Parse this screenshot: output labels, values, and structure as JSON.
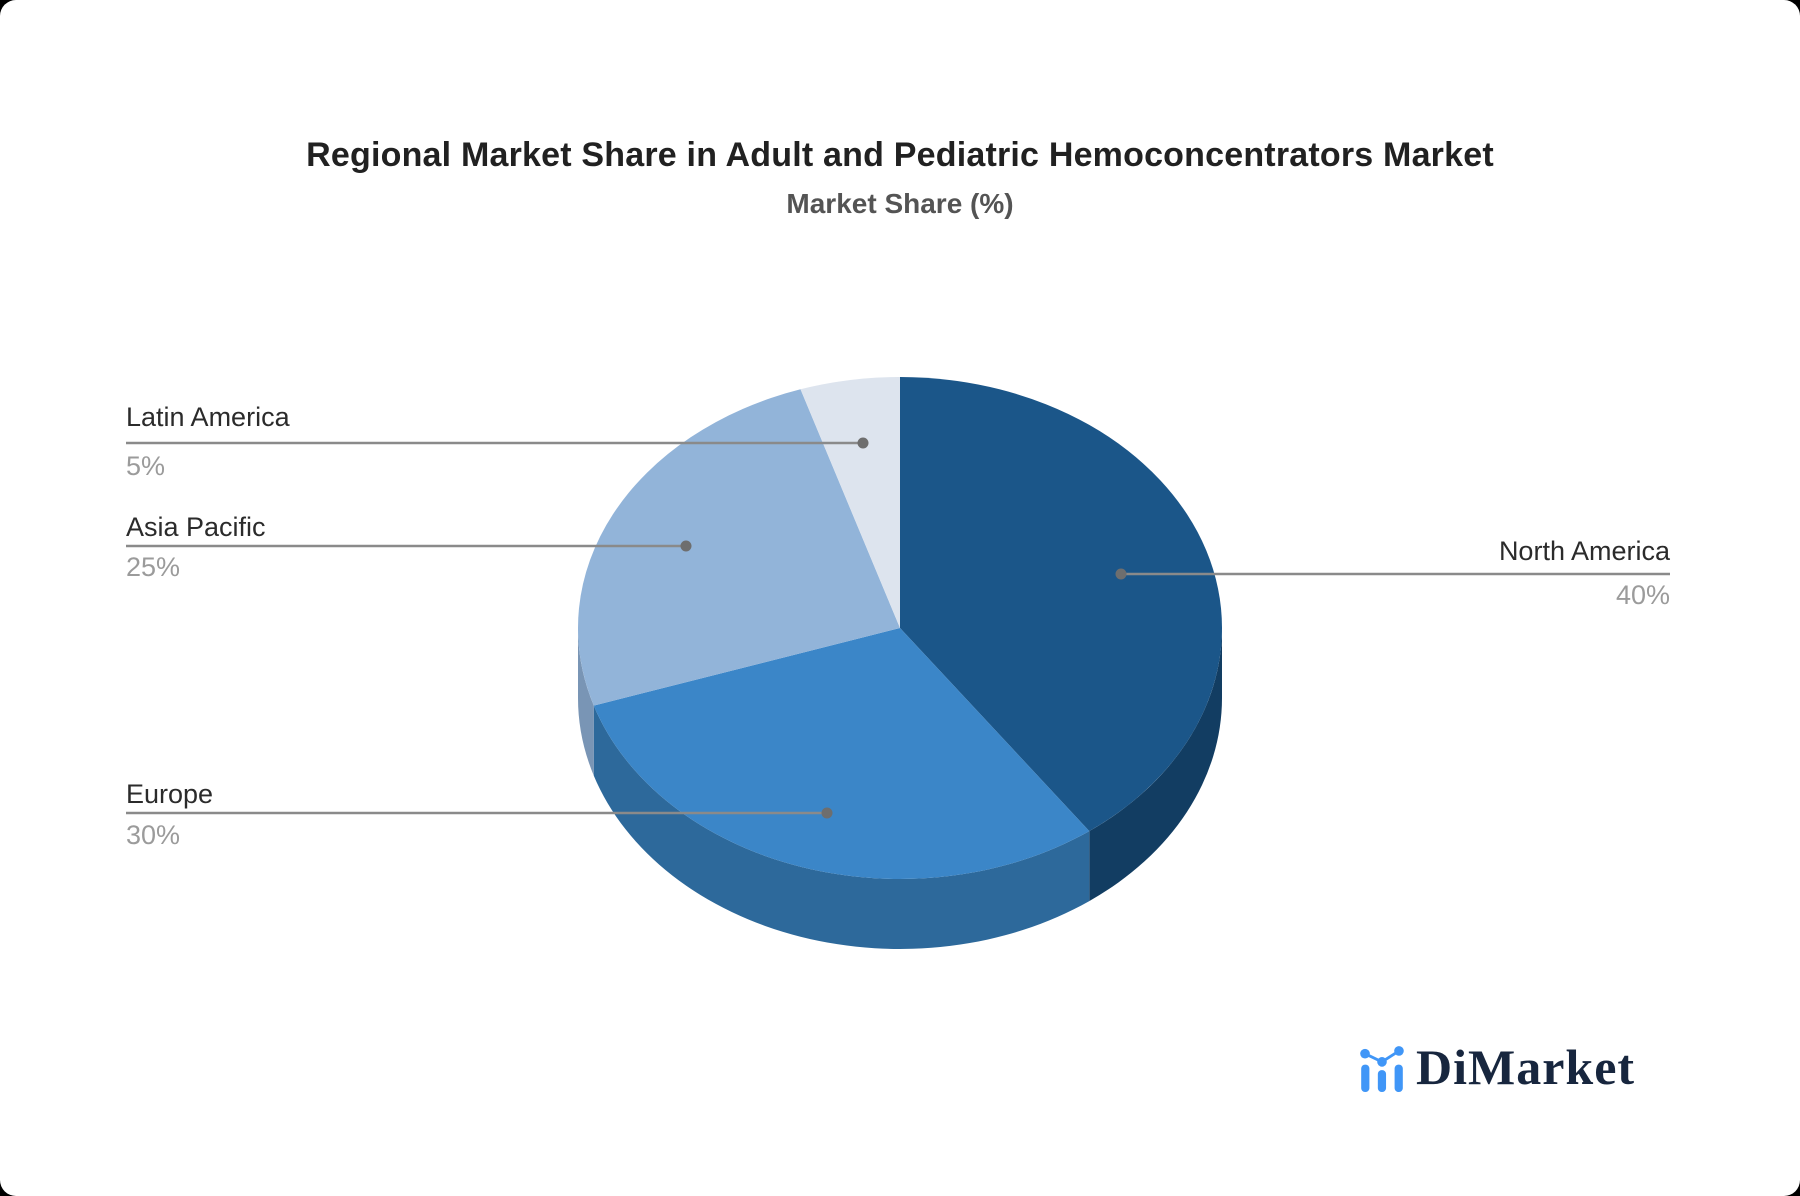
{
  "page": {
    "title": "Regional Market Share in Adult and Pediatric Hemoconcentrators Market",
    "subtitle": "Market Share (%)"
  },
  "chart_data": {
    "type": "pie",
    "style": "3d",
    "title": "Regional Market Share in Adult and Pediatric Hemoconcentrators Market",
    "subtitle": "Market Share (%)",
    "categories": [
      "North America",
      "Europe",
      "Asia Pacific",
      "Latin America"
    ],
    "values": [
      40,
      30,
      25,
      5
    ],
    "value_labels": [
      "40%",
      "30%",
      "25%",
      "5%"
    ],
    "colors": [
      "#1b5689",
      "#3b86c8",
      "#92b4d9",
      "#dde4ee"
    ],
    "side_colors": [
      "#123d62",
      "#2d699b",
      "#7995b5",
      "#c9d3e2"
    ],
    "start_angle_deg": 0,
    "direction": "clockwise",
    "legend": false,
    "labeling": "leader-lines"
  },
  "branding": {
    "logo_text": "DiMarket",
    "logo_icon": "bar-chart-trend-icon",
    "accent_color": "#4096f7",
    "text_color": "#17263e"
  },
  "colors": {
    "leader_line": "#8a8a8a",
    "leader_dot": "#6e6e6e",
    "label_text": "#2b2b2b",
    "value_text": "#9b9b9b",
    "title_text": "#212121",
    "subtitle_text": "#545454",
    "background": "#ffffff"
  }
}
